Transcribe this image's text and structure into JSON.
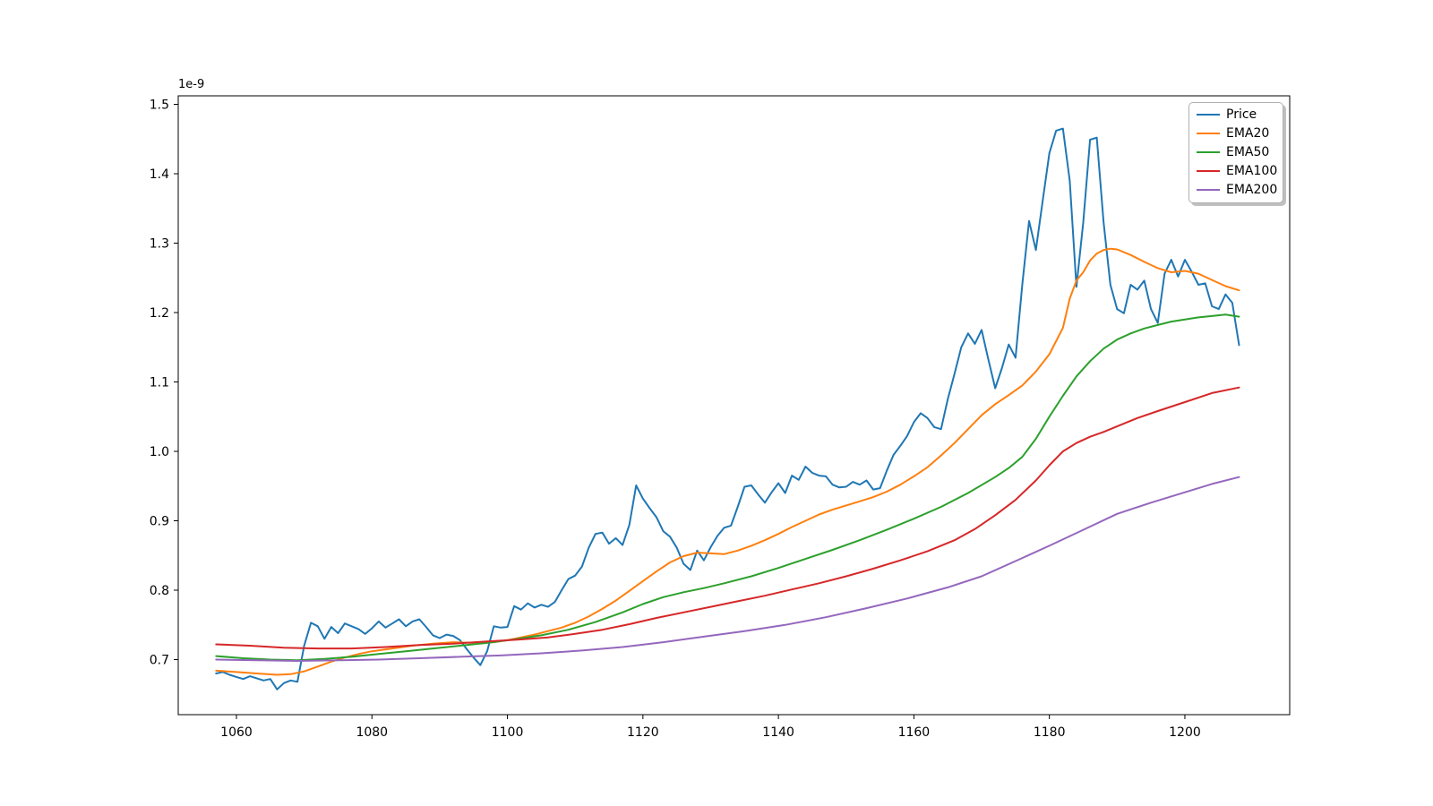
{
  "figure": {
    "background": "#ffffff",
    "offset_label": "1e-9"
  },
  "legend": {
    "position": "upper right",
    "entries": [
      {
        "label": "Price",
        "color": "#1f77b4"
      },
      {
        "label": "EMA20",
        "color": "#ff7f0e"
      },
      {
        "label": "EMA50",
        "color": "#2ca02c"
      },
      {
        "label": "EMA100",
        "color": "#d62728"
      },
      {
        "label": "EMA200",
        "color": "#9467bd"
      }
    ]
  },
  "chart_data": {
    "type": "line",
    "title": "",
    "xlabel": "",
    "ylabel": "",
    "grid": false,
    "y_scale_factor": "1e-9",
    "xlim": [
      1051.5,
      1215.5
    ],
    "ylim": [
      0.621,
      1.512
    ],
    "x_ticks": [
      1060,
      1080,
      1100,
      1120,
      1140,
      1160,
      1180,
      1200
    ],
    "y_ticks": [
      0.7,
      0.8,
      0.9,
      1.0,
      1.1,
      1.2,
      1.3,
      1.4,
      1.5
    ],
    "legend_entries": [
      "Price",
      "EMA20",
      "EMA50",
      "EMA100",
      "EMA200"
    ],
    "series": [
      {
        "name": "Price",
        "color": "#1f77b4",
        "x_start": 1057,
        "x_step": 1,
        "values": [
          0.68,
          0.682,
          0.678,
          0.675,
          0.672,
          0.676,
          0.673,
          0.67,
          0.672,
          0.657,
          0.666,
          0.67,
          0.668,
          0.72,
          0.753,
          0.748,
          0.73,
          0.747,
          0.738,
          0.752,
          0.748,
          0.744,
          0.737,
          0.745,
          0.755,
          0.746,
          0.752,
          0.758,
          0.748,
          0.755,
          0.758,
          0.747,
          0.735,
          0.731,
          0.736,
          0.734,
          0.728,
          0.715,
          0.703,
          0.692,
          0.712,
          0.748,
          0.746,
          0.747,
          0.777,
          0.772,
          0.781,
          0.775,
          0.779,
          0.776,
          0.783,
          0.8,
          0.816,
          0.821,
          0.834,
          0.861,
          0.881,
          0.883,
          0.867,
          0.875,
          0.865,
          0.894,
          0.951,
          0.932,
          0.918,
          0.905,
          0.885,
          0.877,
          0.861,
          0.838,
          0.829,
          0.857,
          0.843,
          0.862,
          0.878,
          0.89,
          0.893,
          0.92,
          0.949,
          0.951,
          0.938,
          0.926,
          0.941,
          0.954,
          0.94,
          0.965,
          0.959,
          0.978,
          0.969,
          0.965,
          0.964,
          0.952,
          0.948,
          0.949,
          0.956,
          0.952,
          0.958,
          0.945,
          0.947,
          0.972,
          0.995,
          1.008,
          1.022,
          1.042,
          1.055,
          1.048,
          1.035,
          1.032,
          1.075,
          1.112,
          1.15,
          1.17,
          1.155,
          1.175,
          1.132,
          1.091,
          1.12,
          1.154,
          1.135,
          1.24,
          1.332,
          1.29,
          1.36,
          1.43,
          1.462,
          1.465,
          1.39,
          1.237,
          1.33,
          1.449,
          1.452,
          1.33,
          1.24,
          1.205,
          1.199,
          1.24,
          1.233,
          1.246,
          1.205,
          1.185,
          1.256,
          1.276,
          1.252,
          1.276,
          1.259,
          1.24,
          1.242,
          1.209,
          1.205,
          1.226,
          1.214,
          1.153
        ]
      },
      {
        "name": "EMA20",
        "color": "#ff7f0e",
        "points": [
          [
            1057,
            0.684
          ],
          [
            1060,
            0.682
          ],
          [
            1063,
            0.68
          ],
          [
            1066,
            0.678
          ],
          [
            1068,
            0.679
          ],
          [
            1070,
            0.683
          ],
          [
            1072,
            0.69
          ],
          [
            1074,
            0.697
          ],
          [
            1076,
            0.703
          ],
          [
            1078,
            0.708
          ],
          [
            1080,
            0.712
          ],
          [
            1083,
            0.716
          ],
          [
            1086,
            0.72
          ],
          [
            1089,
            0.723
          ],
          [
            1092,
            0.725
          ],
          [
            1095,
            0.724
          ],
          [
            1098,
            0.725
          ],
          [
            1100,
            0.728
          ],
          [
            1102,
            0.732
          ],
          [
            1104,
            0.736
          ],
          [
            1106,
            0.741
          ],
          [
            1108,
            0.746
          ],
          [
            1110,
            0.753
          ],
          [
            1112,
            0.762
          ],
          [
            1114,
            0.773
          ],
          [
            1116,
            0.785
          ],
          [
            1118,
            0.799
          ],
          [
            1120,
            0.813
          ],
          [
            1122,
            0.827
          ],
          [
            1124,
            0.84
          ],
          [
            1126,
            0.849
          ],
          [
            1128,
            0.854
          ],
          [
            1130,
            0.853
          ],
          [
            1132,
            0.852
          ],
          [
            1134,
            0.857
          ],
          [
            1136,
            0.864
          ],
          [
            1138,
            0.872
          ],
          [
            1140,
            0.881
          ],
          [
            1142,
            0.891
          ],
          [
            1144,
            0.9
          ],
          [
            1146,
            0.909
          ],
          [
            1148,
            0.916
          ],
          [
            1150,
            0.922
          ],
          [
            1152,
            0.928
          ],
          [
            1154,
            0.934
          ],
          [
            1156,
            0.942
          ],
          [
            1158,
            0.952
          ],
          [
            1160,
            0.964
          ],
          [
            1162,
            0.977
          ],
          [
            1164,
            0.994
          ],
          [
            1166,
            1.012
          ],
          [
            1168,
            1.032
          ],
          [
            1170,
            1.052
          ],
          [
            1172,
            1.068
          ],
          [
            1174,
            1.081
          ],
          [
            1176,
            1.095
          ],
          [
            1178,
            1.115
          ],
          [
            1180,
            1.14
          ],
          [
            1182,
            1.178
          ],
          [
            1183,
            1.22
          ],
          [
            1184,
            1.246
          ],
          [
            1185,
            1.258
          ],
          [
            1186,
            1.275
          ],
          [
            1187,
            1.285
          ],
          [
            1188,
            1.29
          ],
          [
            1189,
            1.292
          ],
          [
            1190,
            1.291
          ],
          [
            1192,
            1.283
          ],
          [
            1194,
            1.273
          ],
          [
            1196,
            1.264
          ],
          [
            1198,
            1.258
          ],
          [
            1200,
            1.26
          ],
          [
            1202,
            1.256
          ],
          [
            1204,
            1.247
          ],
          [
            1206,
            1.238
          ],
          [
            1208,
            1.232
          ]
        ]
      },
      {
        "name": "EMA50",
        "color": "#2ca02c",
        "points": [
          [
            1057,
            0.705
          ],
          [
            1061,
            0.702
          ],
          [
            1065,
            0.7
          ],
          [
            1069,
            0.699
          ],
          [
            1073,
            0.701
          ],
          [
            1077,
            0.704
          ],
          [
            1081,
            0.708
          ],
          [
            1085,
            0.712
          ],
          [
            1089,
            0.716
          ],
          [
            1093,
            0.72
          ],
          [
            1097,
            0.724
          ],
          [
            1101,
            0.729
          ],
          [
            1105,
            0.735
          ],
          [
            1109,
            0.743
          ],
          [
            1113,
            0.754
          ],
          [
            1117,
            0.768
          ],
          [
            1120,
            0.78
          ],
          [
            1123,
            0.79
          ],
          [
            1126,
            0.797
          ],
          [
            1129,
            0.803
          ],
          [
            1132,
            0.81
          ],
          [
            1136,
            0.82
          ],
          [
            1140,
            0.832
          ],
          [
            1144,
            0.845
          ],
          [
            1148,
            0.858
          ],
          [
            1152,
            0.872
          ],
          [
            1156,
            0.887
          ],
          [
            1160,
            0.903
          ],
          [
            1164,
            0.92
          ],
          [
            1168,
            0.94
          ],
          [
            1172,
            0.963
          ],
          [
            1174,
            0.976
          ],
          [
            1176,
            0.992
          ],
          [
            1178,
            1.018
          ],
          [
            1180,
            1.05
          ],
          [
            1182,
            1.08
          ],
          [
            1184,
            1.108
          ],
          [
            1186,
            1.13
          ],
          [
            1188,
            1.148
          ],
          [
            1190,
            1.161
          ],
          [
            1192,
            1.17
          ],
          [
            1194,
            1.177
          ],
          [
            1196,
            1.182
          ],
          [
            1198,
            1.187
          ],
          [
            1200,
            1.19
          ],
          [
            1202,
            1.193
          ],
          [
            1204,
            1.195
          ],
          [
            1206,
            1.197
          ],
          [
            1208,
            1.194
          ]
        ]
      },
      {
        "name": "EMA100",
        "color": "#d62728",
        "points": [
          [
            1057,
            0.722
          ],
          [
            1062,
            0.72
          ],
          [
            1067,
            0.717
          ],
          [
            1072,
            0.716
          ],
          [
            1077,
            0.716
          ],
          [
            1082,
            0.718
          ],
          [
            1087,
            0.721
          ],
          [
            1092,
            0.723
          ],
          [
            1097,
            0.726
          ],
          [
            1102,
            0.729
          ],
          [
            1106,
            0.732
          ],
          [
            1110,
            0.737
          ],
          [
            1114,
            0.743
          ],
          [
            1118,
            0.751
          ],
          [
            1122,
            0.76
          ],
          [
            1126,
            0.768
          ],
          [
            1130,
            0.776
          ],
          [
            1134,
            0.784
          ],
          [
            1138,
            0.792
          ],
          [
            1142,
            0.801
          ],
          [
            1146,
            0.81
          ],
          [
            1150,
            0.82
          ],
          [
            1154,
            0.831
          ],
          [
            1158,
            0.843
          ],
          [
            1162,
            0.856
          ],
          [
            1166,
            0.872
          ],
          [
            1169,
            0.888
          ],
          [
            1172,
            0.908
          ],
          [
            1175,
            0.93
          ],
          [
            1178,
            0.958
          ],
          [
            1180,
            0.98
          ],
          [
            1182,
            1.0
          ],
          [
            1184,
            1.012
          ],
          [
            1186,
            1.021
          ],
          [
            1188,
            1.028
          ],
          [
            1190,
            1.036
          ],
          [
            1193,
            1.048
          ],
          [
            1196,
            1.058
          ],
          [
            1200,
            1.071
          ],
          [
            1204,
            1.084
          ],
          [
            1208,
            1.092
          ]
        ]
      },
      {
        "name": "EMA200",
        "color": "#9467bd",
        "points": [
          [
            1057,
            0.7
          ],
          [
            1063,
            0.699
          ],
          [
            1069,
            0.698
          ],
          [
            1075,
            0.699
          ],
          [
            1081,
            0.7
          ],
          [
            1087,
            0.702
          ],
          [
            1093,
            0.704
          ],
          [
            1099,
            0.706
          ],
          [
            1105,
            0.709
          ],
          [
            1111,
            0.713
          ],
          [
            1117,
            0.718
          ],
          [
            1123,
            0.725
          ],
          [
            1129,
            0.733
          ],
          [
            1135,
            0.741
          ],
          [
            1141,
            0.75
          ],
          [
            1147,
            0.761
          ],
          [
            1153,
            0.774
          ],
          [
            1159,
            0.788
          ],
          [
            1165,
            0.804
          ],
          [
            1170,
            0.82
          ],
          [
            1175,
            0.842
          ],
          [
            1180,
            0.864
          ],
          [
            1185,
            0.887
          ],
          [
            1190,
            0.91
          ],
          [
            1195,
            0.926
          ],
          [
            1200,
            0.941
          ],
          [
            1204,
            0.953
          ],
          [
            1208,
            0.963
          ]
        ]
      }
    ]
  }
}
